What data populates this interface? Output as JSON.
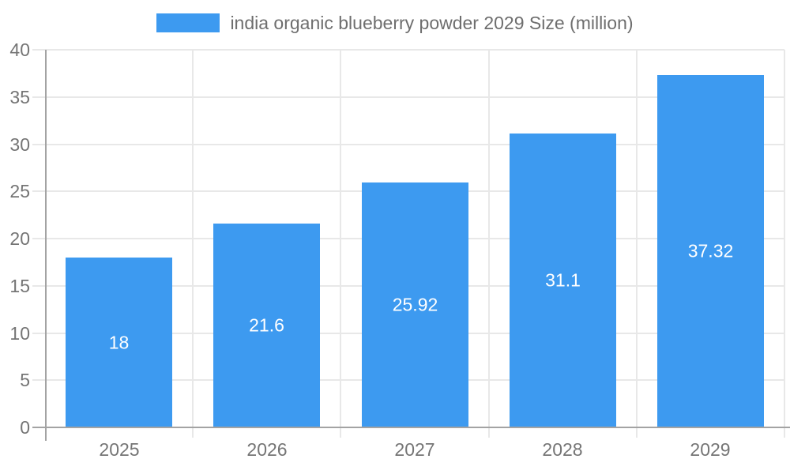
{
  "legend": {
    "label": "india organic blueberry powder 2029 Size (million)",
    "swatch_color": "#3D9AF0",
    "text_color": "#6E6E6E"
  },
  "chart_data": {
    "type": "bar",
    "title": "india organic blueberry powder 2029 Size (million)",
    "categories": [
      "2025",
      "2026",
      "2027",
      "2028",
      "2029"
    ],
    "values": [
      18,
      21.6,
      25.92,
      31.1,
      37.32
    ],
    "value_labels": [
      "18",
      "21.6",
      "25.92",
      "31.1",
      "37.32"
    ],
    "xlabel": "",
    "ylabel": "",
    "ylim": [
      0,
      40
    ],
    "yticks": [
      0,
      5,
      10,
      15,
      20,
      25,
      30,
      35,
      40
    ],
    "grid": true,
    "legend_position": "top",
    "bar_color": "#3D9AF0",
    "bar_label_color": "#FFFFFF",
    "axis_text_color": "#757575",
    "gridline_color": "#E8E8E8",
    "axis_line_color": "#A3A3A3"
  }
}
